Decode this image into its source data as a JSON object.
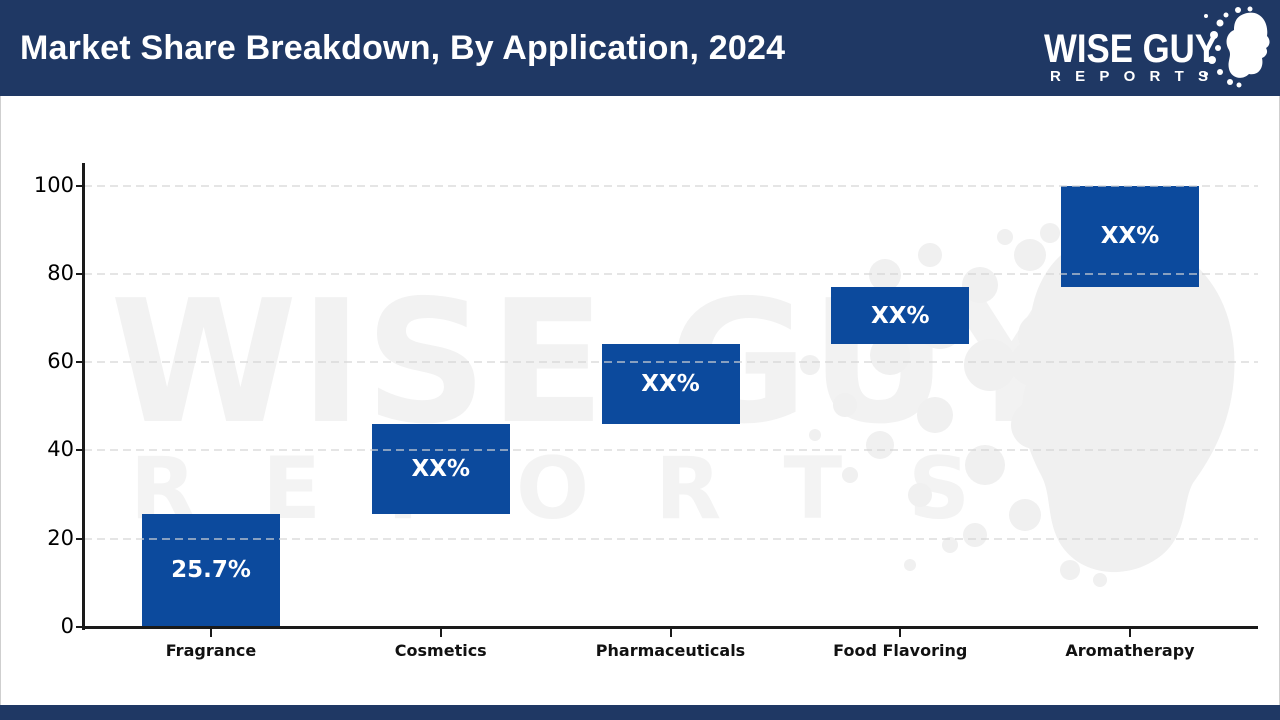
{
  "header": {
    "title": "Market Share Breakdown, By Application, 2024",
    "bg_color": "#1f3864",
    "logo": {
      "line1": "WISE GUY",
      "line2": "REPORTS"
    }
  },
  "footer": {
    "bg_color": "#1f3864"
  },
  "watermark": {
    "line1": "WISE GUY",
    "line2": "REPORTS"
  },
  "chart_data": {
    "type": "bar",
    "variant": "waterfall",
    "title": "Market Share Breakdown, By Application, 2024",
    "categories": [
      "Fragrance",
      "Cosmetics",
      "Pharmaceuticals",
      "Food Flavoring",
      "Aromatherapy"
    ],
    "segments": [
      {
        "category": "Fragrance",
        "start": 0,
        "end": 25.7,
        "label": "25.7%"
      },
      {
        "category": "Cosmetics",
        "start": 25.7,
        "end": 46,
        "label": "XX%"
      },
      {
        "category": "Pharmaceuticals",
        "start": 46,
        "end": 64,
        "label": "XX%"
      },
      {
        "category": "Food Flavoring",
        "start": 64,
        "end": 77,
        "label": "XX%"
      },
      {
        "category": "Aromatherapy",
        "start": 77,
        "end": 100,
        "label": "XX%"
      }
    ],
    "yticks": [
      0,
      20,
      40,
      60,
      80,
      100
    ],
    "ylim": [
      0,
      105
    ],
    "grid": "dashed-horizontal",
    "legend": "none",
    "bar_color": "#0c4a9d",
    "bar_label_color": "#ffffff",
    "axis_color": "#1a1a1a"
  }
}
